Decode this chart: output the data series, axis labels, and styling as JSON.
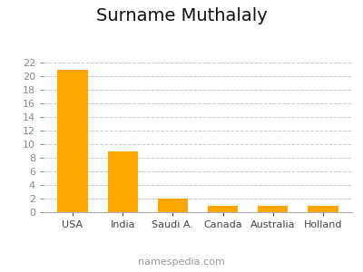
{
  "title": "Surname Muthalaly",
  "categories": [
    "USA",
    "India",
    "Saudi A.",
    "Canada",
    "Australia",
    "Holland"
  ],
  "values": [
    21,
    9,
    2,
    1,
    1,
    1
  ],
  "bar_color": "#FFA500",
  "background_color": "#ffffff",
  "ylim": [
    0,
    24
  ],
  "yticks": [
    0,
    2,
    4,
    6,
    8,
    10,
    12,
    14,
    16,
    18,
    20,
    22
  ],
  "grid_color": "#cccccc",
  "title_fontsize": 14,
  "xtick_fontsize": 8,
  "ytick_fontsize": 8,
  "footer_text": "namespedia.com",
  "footer_fontsize": 8,
  "footer_color": "#999999"
}
